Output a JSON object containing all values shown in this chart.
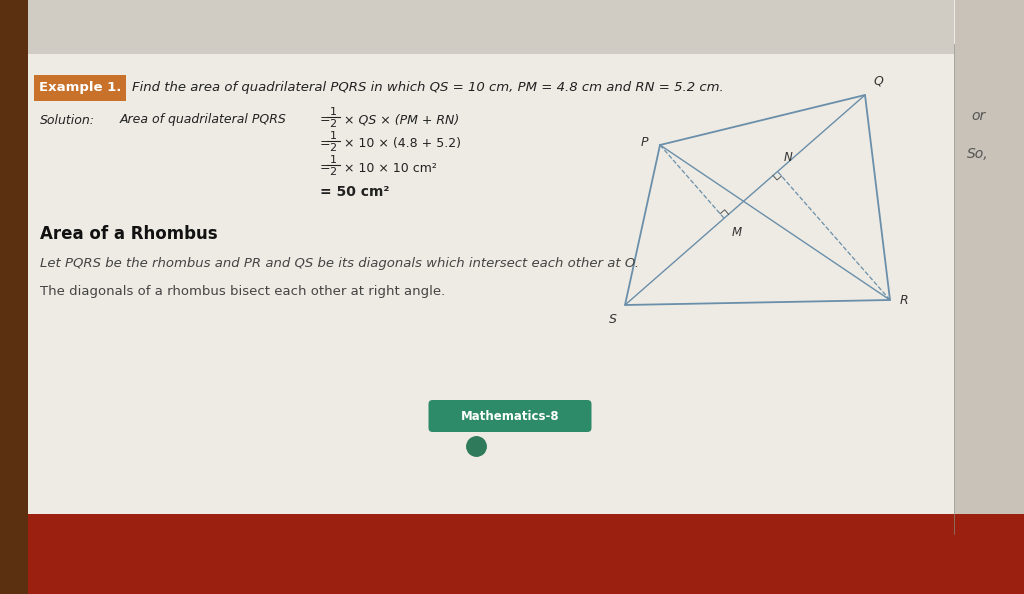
{
  "page_bg": "#eeebe4",
  "left_spine_color": "#5a3010",
  "right_strip_color": "#c8c2b8",
  "bottom_cloth_color": "#9b2010",
  "example_box_color": "#c8712a",
  "example_box_text": "Example 1.",
  "title_text": "Find the area of quadrilateral PQRS in which QS = 10 cm, PM = 4.8 cm and RN = 5.2 cm.",
  "solution_label": "Solution:",
  "sol_line1": "Area of quadrilateral PQRS",
  "step1_suffix": "× QS × (PM + RN)",
  "step2_suffix": "× 10 × (4.8 + 5.2)",
  "step3_suffix": "× 10 × 10 cm²",
  "result": "= 50 cm²",
  "section_title": "Area of a Rhombus",
  "rhombus_text1": "Let PQRS be the rhombus and PR and QS be its diagonals which intersect each other at O.",
  "rhombus_text2": "The diagonals of a rhombus bisect each other at right angle.",
  "badge_text": "Mathematics-8",
  "badge_color": "#2e8b6a",
  "badge_text_color": "#ffffff",
  "dot_color": "#2e7a5a",
  "line_color": "#6a8faa",
  "label_color": "#333333",
  "text_color": "#222222",
  "italic_text_color": "#444444",
  "or_text": "or",
  "so_text": "So,"
}
